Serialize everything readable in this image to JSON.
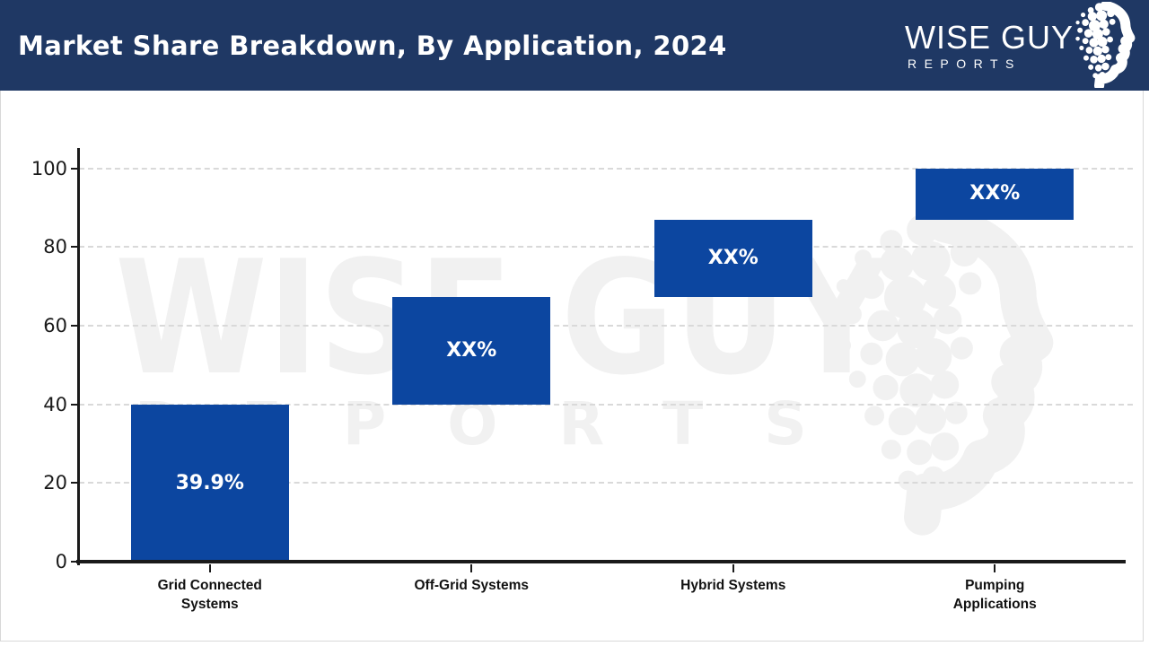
{
  "header": {
    "title": "Market Share Breakdown, By Application, 2024",
    "logo": {
      "wordmark": "WISE GUY",
      "subtitle": "REPORTS"
    }
  },
  "watermark": {
    "wordmark": "WISE GUY",
    "subtitle": "REPORTS"
  },
  "chart_data": {
    "type": "bar",
    "subtype": "waterfall",
    "title": "Market Share Breakdown, By Application, 2024",
    "categories": [
      "Grid Connected\nSystems",
      "Off-Grid Systems",
      "Hybrid Systems",
      "Pumping\nApplications"
    ],
    "segments": [
      {
        "category": "Grid Connected Systems",
        "start": 0,
        "end": 39.9,
        "label": "39.9%"
      },
      {
        "category": "Off-Grid Systems",
        "start": 39.9,
        "end": 67.3,
        "label": "XX%"
      },
      {
        "category": "Hybrid Systems",
        "start": 67.3,
        "end": 86.9,
        "label": "XX%"
      },
      {
        "category": "Pumping Applications",
        "start": 86.9,
        "end": 100,
        "label": "XX%"
      }
    ],
    "yticks": [
      0,
      20,
      40,
      60,
      80,
      100
    ],
    "ylim": [
      0,
      105
    ],
    "xlabel": "",
    "ylabel": "",
    "grid": "horizontal-dashed",
    "legend": null,
    "bar_color": "#0c46a0",
    "bar_label_color": "#ffffff"
  },
  "colors": {
    "header_bg": "#1f3864",
    "bar_blue": "#0c46a0",
    "gridline": "#d9d9d9",
    "axis": "#1a1a1a",
    "frame_border": "#d8d8d8",
    "watermark": "#f1f1f1",
    "title_text": "#ffffff"
  }
}
